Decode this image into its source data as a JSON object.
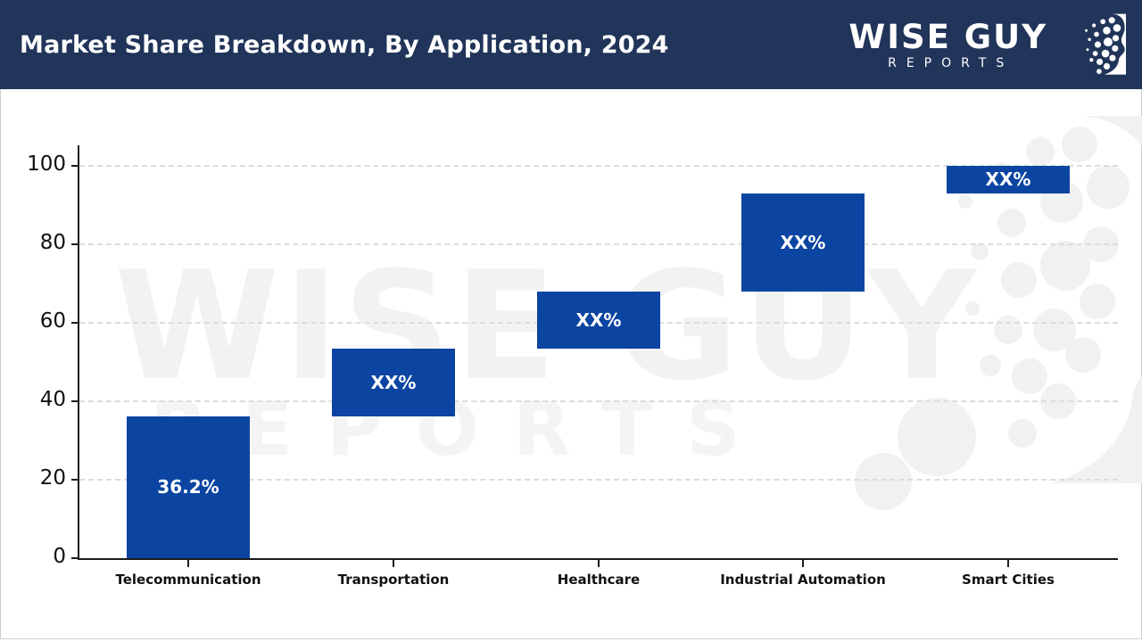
{
  "header": {
    "title": "Market Share Breakdown, By Application, 2024",
    "logo": {
      "line1": "WISE GUY",
      "line2": "REPORTS"
    }
  },
  "watermark": {
    "line1": "WISE GUY",
    "line2": "REPORTS"
  },
  "colors": {
    "header_bg": "#213459",
    "bar": "#0b45a1",
    "bar_label": "#ffffff",
    "grid": "#dcdcdc",
    "axis": "#1c1c1c",
    "watermark": "#f2f2f3"
  },
  "chart_data": {
    "type": "bar",
    "subtype": "waterfall",
    "title": "Market Share Breakdown, By Application, 2024",
    "xlabel": "",
    "ylabel": "",
    "ylim": [
      0,
      100
    ],
    "yticks": [
      0,
      20,
      40,
      60,
      80,
      100
    ],
    "grid": "horizontal-dashed",
    "legend": "none",
    "categories": [
      "Telecommunication",
      "Transportation",
      "Healthcare",
      "Industrial Automation",
      "Smart Cities"
    ],
    "segments": [
      {
        "category": "Telecommunication",
        "start": 0,
        "end": 36.2,
        "label": "36.2%"
      },
      {
        "category": "Transportation",
        "start": 36.2,
        "end": 53.5,
        "label": "XX%"
      },
      {
        "category": "Healthcare",
        "start": 53.5,
        "end": 68,
        "label": "XX%"
      },
      {
        "category": "Industrial Automation",
        "start": 68,
        "end": 93,
        "label": "XX%"
      },
      {
        "category": "Smart Cities",
        "start": 93,
        "end": 100,
        "label": "XX%"
      }
    ]
  }
}
